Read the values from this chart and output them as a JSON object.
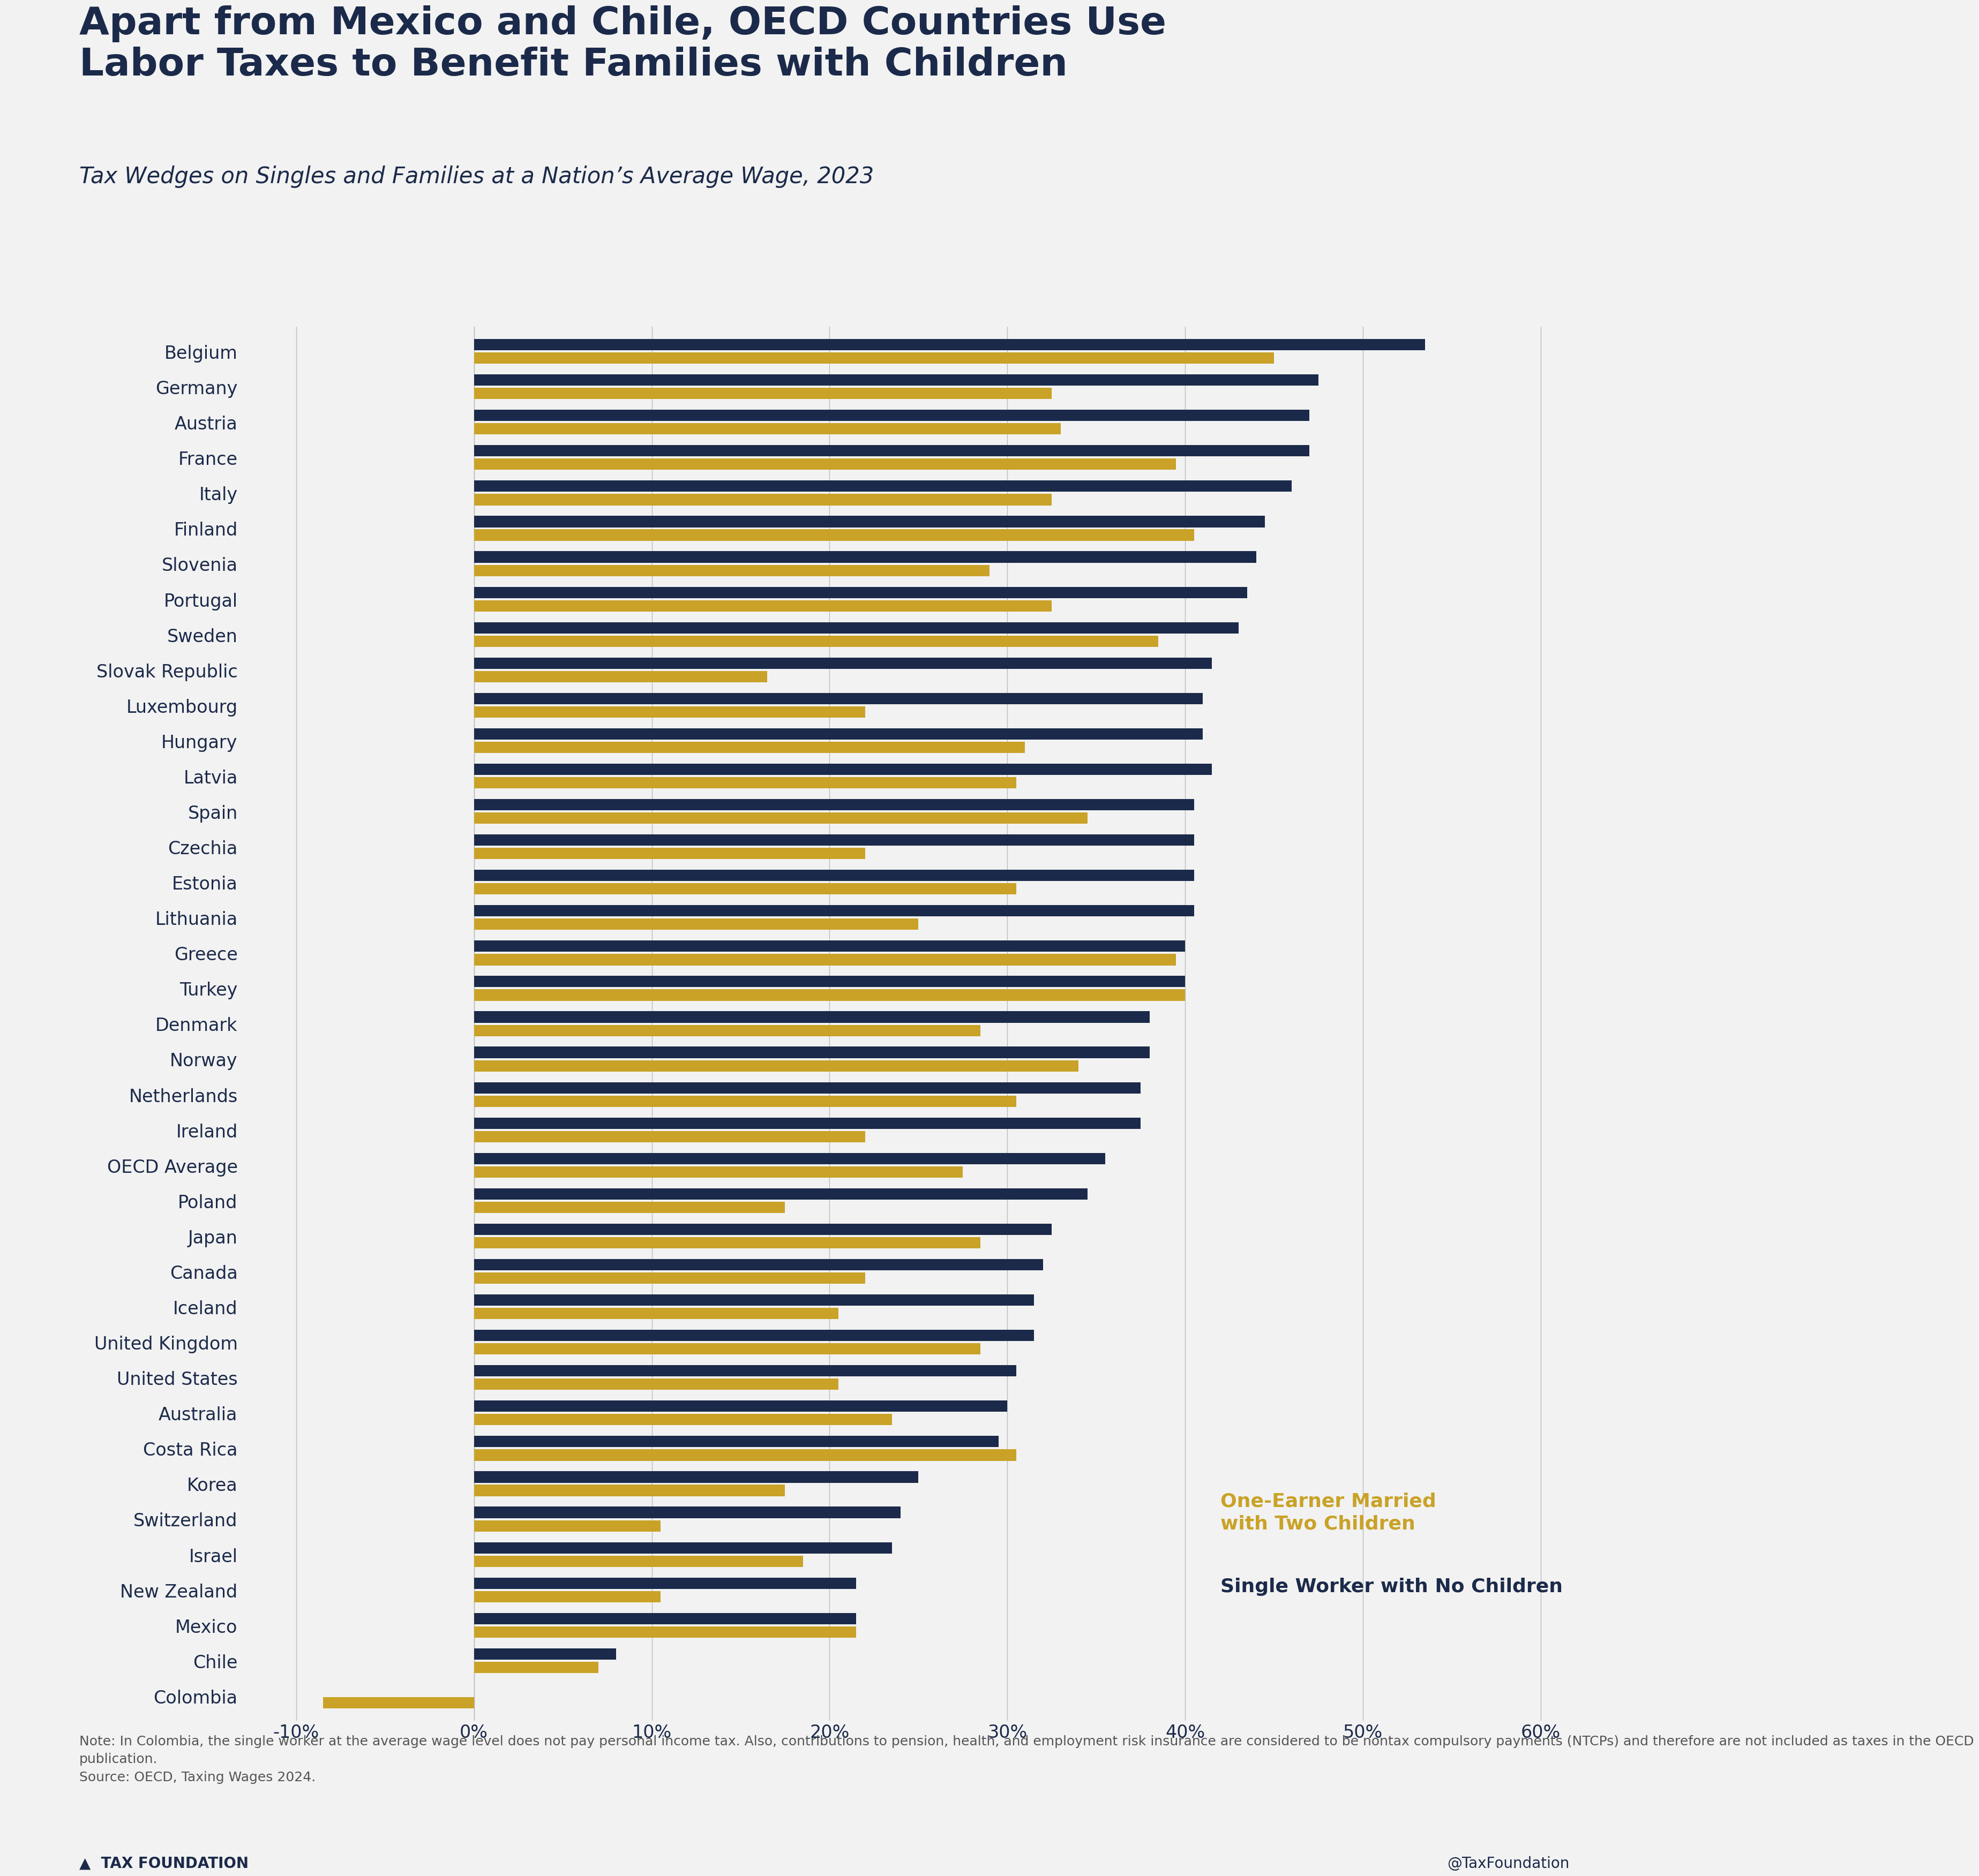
{
  "title": "Apart from Mexico and Chile, OECD Countries Use\nLabor Taxes to Benefit Families with Children",
  "subtitle": "Tax Wedges on Singles and Families at a Nation’s Average Wage, 2023",
  "note": "Note: In Colombia, the single worker at the average wage level does not pay personal income tax. Also, contributions to pension, health, and employment risk insurance are considered to be nontax compulsory payments (NTCPs) and therefore are not included as taxes in the OECD\npublication.\nSource: OECD, Taxing Wages 2024.",
  "footer_left": "▲  TAX FOUNDATION",
  "footer_right": "@TaxFoundation",
  "background_color": "#F2F2F2",
  "bar_color_family": "#C9A227",
  "bar_color_single": "#1B2A4A",
  "countries": [
    "Belgium",
    "Germany",
    "Austria",
    "France",
    "Italy",
    "Finland",
    "Slovenia",
    "Portugal",
    "Sweden",
    "Slovak Republic",
    "Luxembourg",
    "Hungary",
    "Latvia",
    "Spain",
    "Czechia",
    "Estonia",
    "Lithuania",
    "Greece",
    "Turkey",
    "Denmark",
    "Norway",
    "Netherlands",
    "Ireland",
    "OECD Average",
    "Poland",
    "Japan",
    "Canada",
    "Iceland",
    "United Kingdom",
    "United States",
    "Australia",
    "Costa Rica",
    "Korea",
    "Switzerland",
    "Israel",
    "New Zealand",
    "Mexico",
    "Chile",
    "Colombia"
  ],
  "family_values": [
    45.0,
    32.5,
    33.0,
    39.5,
    32.5,
    40.5,
    29.0,
    32.5,
    38.5,
    16.5,
    22.0,
    31.0,
    30.5,
    34.5,
    22.0,
    30.5,
    25.0,
    39.5,
    40.0,
    28.5,
    34.0,
    30.5,
    22.0,
    27.5,
    17.5,
    28.5,
    22.0,
    20.5,
    28.5,
    20.5,
    23.5,
    30.5,
    17.5,
    10.5,
    18.5,
    10.5,
    21.5,
    7.0,
    -8.5
  ],
  "single_values": [
    53.5,
    47.5,
    47.0,
    47.0,
    46.0,
    44.5,
    44.0,
    43.5,
    43.0,
    41.5,
    41.0,
    41.0,
    41.5,
    40.5,
    40.5,
    40.5,
    40.5,
    40.0,
    40.0,
    38.0,
    38.0,
    37.5,
    37.5,
    35.5,
    34.5,
    32.5,
    32.0,
    31.5,
    31.5,
    30.5,
    30.0,
    29.5,
    25.0,
    24.0,
    23.5,
    21.5,
    21.5,
    8.0,
    0.0
  ],
  "xlim": [
    -13,
    63
  ],
  "xticks": [
    -10,
    0,
    10,
    20,
    30,
    40,
    50,
    60
  ],
  "xtick_labels": [
    "-10%",
    "0%",
    "10%",
    "20%",
    "30%",
    "40%",
    "50%",
    "60%"
  ],
  "title_color": "#1B2A4A",
  "subtitle_color": "#1B2A4A",
  "note_color": "#555555",
  "grid_color": "#BBBBBB",
  "title_fontsize": 52,
  "subtitle_fontsize": 30,
  "label_fontsize": 24,
  "tick_fontsize": 24,
  "note_fontsize": 18,
  "legend_fontsize": 26,
  "bar_height": 0.32,
  "bar_gap": 0.38
}
